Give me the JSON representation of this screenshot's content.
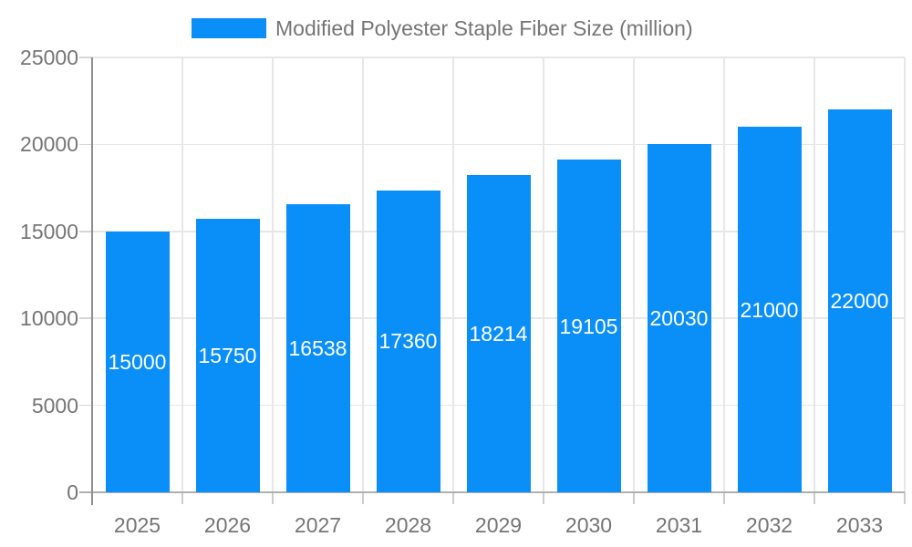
{
  "chart_data": {
    "type": "bar",
    "title": "Modified Polyester Staple Fiber Size (million)",
    "categories": [
      "2025",
      "2026",
      "2027",
      "2028",
      "2029",
      "2030",
      "2031",
      "2032",
      "2033"
    ],
    "values": [
      15000,
      15750,
      16538,
      17360,
      18214,
      19105,
      20030,
      21000,
      22000
    ],
    "bar_value_labels": [
      "15000",
      "15750",
      "16538",
      "17360",
      "18214",
      "19105",
      "20030",
      "21000",
      "22000"
    ],
    "xlabel": "",
    "ylabel": "",
    "ylim": [
      0,
      25000
    ],
    "ytick_step": 5000,
    "ytick_labels": [
      "0",
      "5000",
      "10000",
      "15000",
      "20000",
      "25000"
    ],
    "grid": true,
    "legend_position": "top-center",
    "legend_entries": [
      "Modified Polyester Staple Fiber Size (million)"
    ],
    "colors": {
      "bar": "#0a8ff9",
      "grid": "#e7e7e7",
      "axis_y": "#8f8f8f",
      "axis_x": "#b0b0b0",
      "tick_y": "#d6d6d6",
      "tick_x": "#cccccc",
      "text": "#757575",
      "bar_label": "#ffffff",
      "background": "#ffffff"
    }
  }
}
